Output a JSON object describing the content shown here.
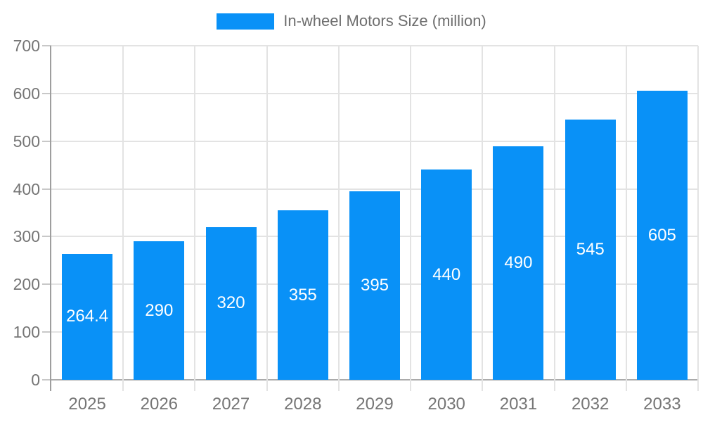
{
  "legend": {
    "label": "In-wheel Motors Size (million)"
  },
  "chart_data": {
    "type": "bar",
    "title": "In-wheel Motors Size (million)",
    "categories": [
      "2025",
      "2026",
      "2027",
      "2028",
      "2029",
      "2030",
      "2031",
      "2032",
      "2033"
    ],
    "values": [
      264.4,
      290,
      320,
      355,
      395,
      440,
      490,
      545,
      605
    ],
    "xlabel": "",
    "ylabel": "",
    "ylim": [
      0,
      700
    ],
    "ytick_step": 100,
    "yticks": [
      0,
      100,
      200,
      300,
      400,
      500,
      600,
      700
    ],
    "grid": true,
    "legend_position": "top",
    "colors": {
      "bar": "#0991f7",
      "bar_label": "#ffffff",
      "grid": "#e3e3e3",
      "tick": "#c8c8c8",
      "x_axis": "#ababab",
      "y_axis": "#9e9e9e",
      "text": "#757575",
      "legend_text": "#6e6e6e"
    }
  }
}
